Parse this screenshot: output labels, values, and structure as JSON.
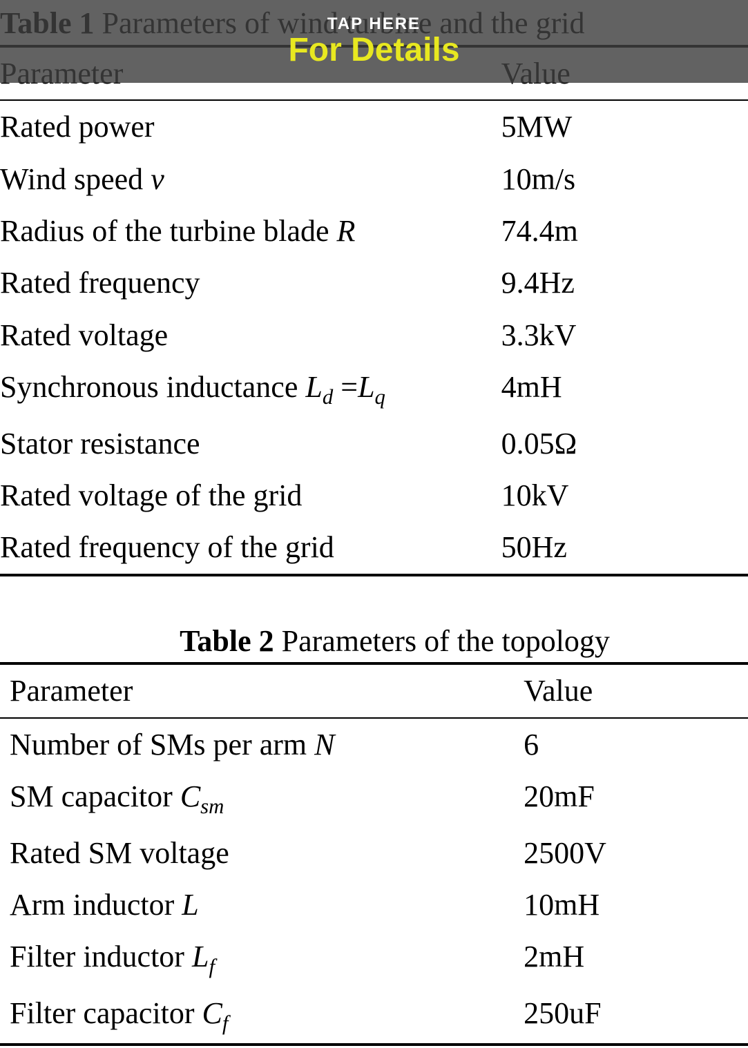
{
  "overlay": {
    "line1": "TAP HERE",
    "line2": "For Details",
    "bg_color": "rgba(64,64,64,0.82)",
    "line1_color": "#ffffff",
    "line2_color": "#e8e820",
    "line1_fontsize": 24,
    "line2_fontsize": 48
  },
  "table1": {
    "caption_label": "Table 1",
    "caption_text": " Parameters of wind turbine and the grid",
    "columns": [
      "Parameter",
      "Value"
    ],
    "rows": [
      {
        "param_html": "Rated power",
        "value": "5MW"
      },
      {
        "param_html": "Wind speed <span class=\"ital\">v</span>",
        "value": "10m/s"
      },
      {
        "param_html": "Radius of the turbine blade <span class=\"ital\">R</span>",
        "value": "74.4m"
      },
      {
        "param_html": "Rated frequency",
        "value": "9.4Hz"
      },
      {
        "param_html": "Rated voltage",
        "value": "3.3kV"
      },
      {
        "param_html": "Synchronous inductance <span class=\"ital\">L</span><sub>d</sub> =<span class=\"ital\">L</span><sub>q</sub>",
        "value": "4mH"
      },
      {
        "param_html": "Stator resistance",
        "value": "0.05Ω"
      },
      {
        "param_html": "Rated voltage of the grid",
        "value": "10kV"
      },
      {
        "param_html": "Rated frequency of the grid",
        "value": "50Hz"
      }
    ],
    "border_color": "#000000",
    "font_family": "Times New Roman",
    "font_size_pt": 44,
    "col_widths_pct": [
      67,
      33
    ]
  },
  "table2": {
    "caption_label": "Table 2",
    "caption_text": " Parameters of the topology",
    "columns": [
      "Parameter",
      "Value"
    ],
    "rows": [
      {
        "param_html": "Number of SMs per arm <span class=\"ital\">N</span>",
        "value": "6"
      },
      {
        "param_html": "SM capacitor <span class=\"ital\">C</span><sub>sm</sub>",
        "value": "20mF"
      },
      {
        "param_html": "Rated SM voltage",
        "value": "2500V"
      },
      {
        "param_html": "Arm inductor <span class=\"ital\">L</span>",
        "value": "10mH"
      },
      {
        "param_html": "Filter inductor <span class=\"ital\">L</span><sub>f</sub>",
        "value": "2mH"
      },
      {
        "param_html": "Filter capacitor <span class=\"ital\">C</span><sub>f</sub>",
        "value": "250uF"
      }
    ],
    "border_color": "#000000",
    "font_family": "Times New Roman",
    "font_size_pt": 44,
    "col_widths_pct": [
      70,
      30
    ]
  }
}
